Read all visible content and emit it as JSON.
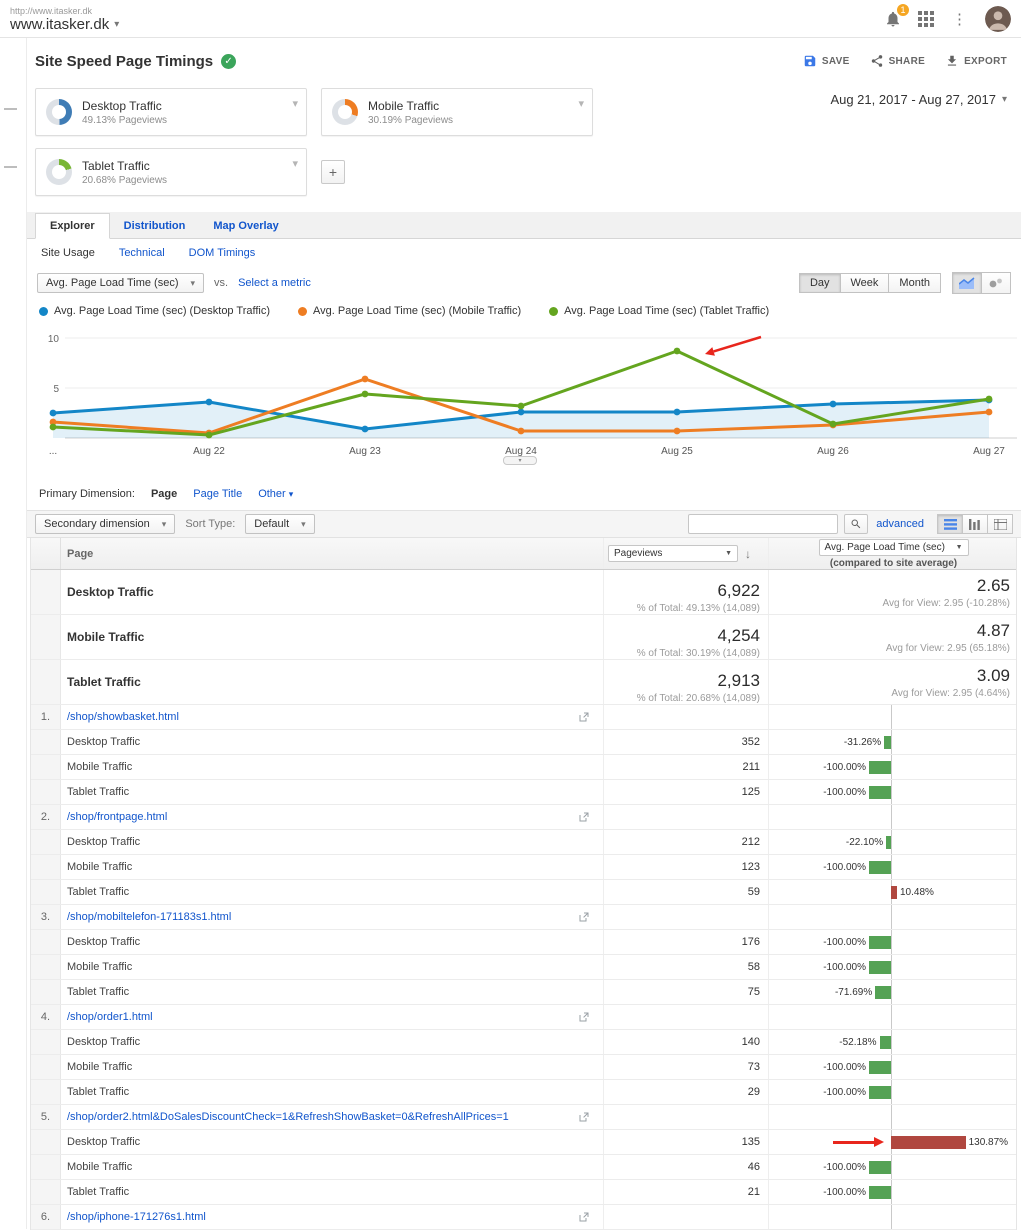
{
  "topbar": {
    "url": "http://www.itasker.dk",
    "account": "www.itasker.dk",
    "notification_count": "1"
  },
  "header": {
    "title": "Site Speed Page Timings",
    "save": "SAVE",
    "share": "SHARE",
    "export": "EXPORT"
  },
  "segments": [
    {
      "name": "Desktop Traffic",
      "sub": "49.13% Pageviews",
      "pct": 49.13,
      "color": "#3f7cb5"
    },
    {
      "name": "Mobile Traffic",
      "sub": "30.19% Pageviews",
      "pct": 30.19,
      "color": "#ee7d23"
    },
    {
      "name": "Tablet Traffic",
      "sub": "20.68% Pageviews",
      "pct": 20.68,
      "color": "#79b636"
    }
  ],
  "date_range": "Aug 21, 2017 - Aug 27, 2017",
  "tabs": [
    {
      "label": "Explorer",
      "active": true
    },
    {
      "label": "Distribution",
      "active": false
    },
    {
      "label": "Map Overlay",
      "active": false
    }
  ],
  "subtabs": [
    {
      "label": "Site Usage",
      "active": true
    },
    {
      "label": "Technical",
      "active": false
    },
    {
      "label": "DOM Timings",
      "active": false
    }
  ],
  "metric_bar": {
    "metric_dropdown": "Avg. Page Load Time (sec)",
    "vs_label": "vs.",
    "select_metric": "Select a metric",
    "granularity": [
      "Day",
      "Week",
      "Month"
    ],
    "active_granularity": "Day"
  },
  "legend": [
    {
      "label": "Avg. Page Load Time (sec) (Desktop Traffic)",
      "color": "#1386c7"
    },
    {
      "label": "Avg. Page Load Time (sec) (Mobile Traffic)",
      "color": "#ee7d23"
    },
    {
      "label": "Avg. Page Load Time (sec) (Tablet Traffic)",
      "color": "#64a51f"
    }
  ],
  "chart_data": {
    "type": "line",
    "x": [
      "...",
      "Aug 22",
      "Aug 23",
      "Aug 24",
      "Aug 25",
      "Aug 26",
      "Aug 27"
    ],
    "ylim": [
      0,
      10
    ],
    "yticks": [
      5,
      10
    ],
    "ylabel": "Avg. Page Load Time (sec)",
    "legend_position": "top",
    "grid": true,
    "series": [
      {
        "name": "Avg. Page Load Time (sec) (Desktop Traffic)",
        "color": "#1386c7",
        "area": true,
        "values": [
          2.5,
          3.6,
          0.9,
          2.6,
          2.6,
          3.4,
          3.8
        ]
      },
      {
        "name": "Avg. Page Load Time (sec) (Mobile Traffic)",
        "color": "#ee7d23",
        "values": [
          1.6,
          0.5,
          5.9,
          0.7,
          0.7,
          1.3,
          2.6
        ]
      },
      {
        "name": "Avg. Page Load Time (sec) (Tablet Traffic)",
        "color": "#64a51f",
        "values": [
          1.1,
          0.3,
          4.4,
          3.2,
          8.7,
          1.4,
          3.9
        ]
      }
    ],
    "annotation": {
      "type": "arrow",
      "target": "Tablet Traffic peak on Aug 25",
      "color": "#e8261d"
    }
  },
  "primary_dimension": {
    "label": "Primary Dimension:",
    "options": [
      {
        "label": "Page",
        "active": true
      },
      {
        "label": "Page Title",
        "active": false
      },
      {
        "label": "Other",
        "active": false
      }
    ]
  },
  "toolbar": {
    "secondary_dimension": "Secondary dimension",
    "sort_type_label": "Sort Type:",
    "sort_type_value": "Default",
    "advanced_label": "advanced",
    "search_value": ""
  },
  "table": {
    "columns": {
      "page": "Page",
      "pageviews": "Pageviews",
      "metric": "Avg. Page Load Time (sec)",
      "metric_note": "(compared to site average)"
    },
    "bar_colors": {
      "decrease": "#54a254",
      "increase": "#b0473f"
    },
    "summary": [
      {
        "name": "Desktop Traffic",
        "pageviews": "6,922",
        "pv_sub": "% of Total: 49.13% (14,089)",
        "value": "2.65",
        "val_sub": "Avg for View: 2.95 (-10.28%)"
      },
      {
        "name": "Mobile Traffic",
        "pageviews": "4,254",
        "pv_sub": "% of Total: 30.19% (14,089)",
        "value": "4.87",
        "val_sub": "Avg for View: 2.95 (65.18%)"
      },
      {
        "name": "Tablet Traffic",
        "pageviews": "2,913",
        "pv_sub": "% of Total: 20.68% (14,089)",
        "value": "3.09",
        "val_sub": "Avg for View: 2.95 (4.64%)"
      }
    ],
    "rows": [
      {
        "num": "1.",
        "page": "/shop/showbasket.html",
        "segments": [
          {
            "name": "Desktop Traffic",
            "pageviews": "352",
            "pct": -31.26,
            "label": "-31.26%"
          },
          {
            "name": "Mobile Traffic",
            "pageviews": "211",
            "pct": -100.0,
            "label": "-100.00%"
          },
          {
            "name": "Tablet Traffic",
            "pageviews": "125",
            "pct": -100.0,
            "label": "-100.00%"
          }
        ]
      },
      {
        "num": "2.",
        "page": "/shop/frontpage.html",
        "segments": [
          {
            "name": "Desktop Traffic",
            "pageviews": "212",
            "pct": -22.1,
            "label": "-22.10%"
          },
          {
            "name": "Mobile Traffic",
            "pageviews": "123",
            "pct": -100.0,
            "label": "-100.00%"
          },
          {
            "name": "Tablet Traffic",
            "pageviews": "59",
            "pct": 10.48,
            "label": "10.48%"
          }
        ]
      },
      {
        "num": "3.",
        "page": "/shop/mobiltelefon-171183s1.html",
        "segments": [
          {
            "name": "Desktop Traffic",
            "pageviews": "176",
            "pct": -100.0,
            "label": "-100.00%"
          },
          {
            "name": "Mobile Traffic",
            "pageviews": "58",
            "pct": -100.0,
            "label": "-100.00%"
          },
          {
            "name": "Tablet Traffic",
            "pageviews": "75",
            "pct": -71.69,
            "label": "-71.69%"
          }
        ]
      },
      {
        "num": "4.",
        "page": "/shop/order1.html",
        "segments": [
          {
            "name": "Desktop Traffic",
            "pageviews": "140",
            "pct": -52.18,
            "label": "-52.18%"
          },
          {
            "name": "Mobile Traffic",
            "pageviews": "73",
            "pct": -100.0,
            "label": "-100.00%"
          },
          {
            "name": "Tablet Traffic",
            "pageviews": "29",
            "pct": -100.0,
            "label": "-100.00%"
          }
        ]
      },
      {
        "num": "5.",
        "page": "/shop/order2.html&DoSalesDiscountCheck=1&RefreshShowBasket=0&RefreshAllPrices=1",
        "segments": [
          {
            "name": "Desktop Traffic",
            "pageviews": "135",
            "pct": 130.87,
            "label": "130.87%",
            "arrow": true
          },
          {
            "name": "Mobile Traffic",
            "pageviews": "46",
            "pct": -100.0,
            "label": "-100.00%"
          },
          {
            "name": "Tablet Traffic",
            "pageviews": "21",
            "pct": -100.0,
            "label": "-100.00%"
          }
        ]
      },
      {
        "num": "6.",
        "page": "/shop/iphone-171276s1.html",
        "segments": []
      }
    ]
  },
  "icons": {
    "caret_down": "▾",
    "select_caret": "▼",
    "sort_desc": "↓",
    "overflow_menu": "⋮",
    "plus": "+",
    "verified_check": "✓"
  }
}
